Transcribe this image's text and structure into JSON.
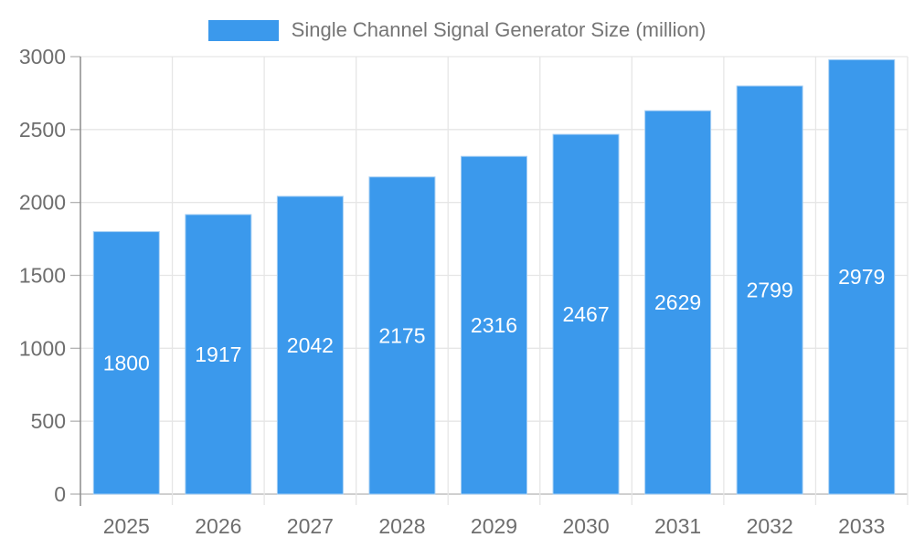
{
  "legend": {
    "label": "Single Channel Signal Generator Size (million)"
  },
  "chart_data": {
    "type": "bar",
    "title": "Single Channel Signal Generator Size (million)",
    "categories": [
      "2025",
      "2026",
      "2027",
      "2028",
      "2029",
      "2030",
      "2031",
      "2032",
      "2033"
    ],
    "values": [
      1800,
      1917,
      2042,
      2175,
      2316,
      2467,
      2629,
      2799,
      2979
    ],
    "xlabel": "",
    "ylabel": "",
    "ylim": [
      0,
      3000
    ],
    "yticks": [
      0,
      500,
      1000,
      1500,
      2000,
      2500,
      3000
    ],
    "ytick_labels": [
      "0",
      "500",
      "1000",
      "1500",
      "2000",
      "2500",
      "3000"
    ],
    "grid": true,
    "legend_position": "top",
    "value_labels": "inside-center",
    "colors": {
      "bar": "#3B99EC",
      "bar_edge": "#A6CFF4",
      "value_label": "#FFFFFF",
      "axis_text": "#6E6E6E",
      "legend_text": "#757575",
      "grid_line": "#E6E6E6",
      "axis_line": "#8C8C8C",
      "baseline": "#B3B3B3",
      "background": "#FFFFFF"
    }
  }
}
